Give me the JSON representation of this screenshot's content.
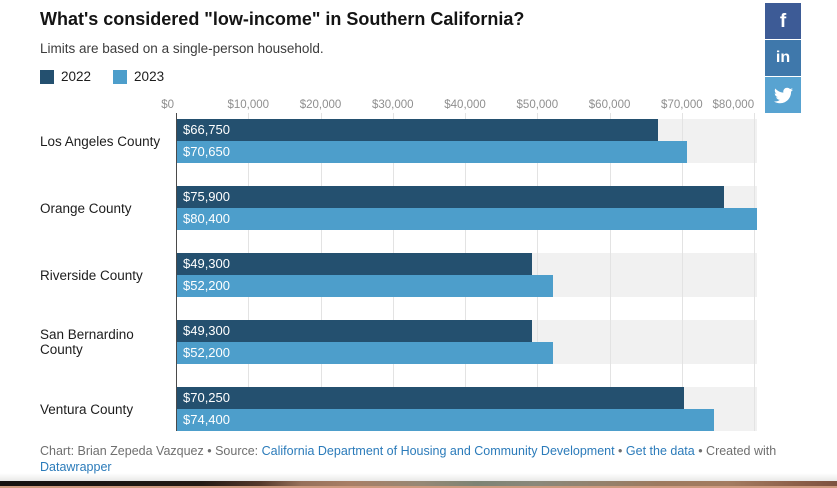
{
  "title": "What's considered \"low-income\" in Southern California?",
  "subtitle": "Limits are based on a single-person household.",
  "legend": {
    "items": [
      {
        "label": "2022",
        "color": "#24506f"
      },
      {
        "label": "2023",
        "color": "#4d9ecb"
      }
    ]
  },
  "chart_data": {
    "type": "bar",
    "orientation": "horizontal",
    "title": "What's considered \"low-income\" in Southern California?",
    "subtitle": "Limits are based on a single-person household.",
    "categories": [
      "Los Angeles County",
      "Orange County",
      "Riverside County",
      "San Bernardino County",
      "Ventura County"
    ],
    "series": [
      {
        "name": "2022",
        "color": "#24506f",
        "values": [
          66750,
          75900,
          49300,
          49300,
          70250
        ],
        "labels": [
          "$66,750",
          "$75,900",
          "$49,300",
          "$49,300",
          "$70,250"
        ]
      },
      {
        "name": "2023",
        "color": "#4d9ecb",
        "values": [
          70650,
          80400,
          52200,
          52200,
          74400
        ],
        "labels": [
          "$70,650",
          "$80,400",
          "$52,200",
          "$52,200",
          "$74,400"
        ]
      }
    ],
    "xlabel": "",
    "ylabel": "",
    "xmax": 80400,
    "grid": "vertical",
    "legend_position": "top",
    "axis_ticks": [
      {
        "label": "$0",
        "value": 0
      },
      {
        "label": "$10,000",
        "value": 10000
      },
      {
        "label": "$20,000",
        "value": 20000
      },
      {
        "label": "$30,000",
        "value": 30000
      },
      {
        "label": "$40,000",
        "value": 40000
      },
      {
        "label": "$50,000",
        "value": 50000
      },
      {
        "label": "$60,000",
        "value": 60000
      },
      {
        "label": "$70,000",
        "value": 70000
      },
      {
        "label": "$80,000",
        "value": 80000
      }
    ]
  },
  "footer": {
    "segments": [
      {
        "text": "Chart: Brian Zepeda Vazquez • Source: ",
        "link": false
      },
      {
        "text": "California Department of Housing and Community Development",
        "link": true
      },
      {
        "text": " • ",
        "link": false
      },
      {
        "text": "Get the data",
        "link": true
      },
      {
        "text": " • Created with ",
        "link": false
      },
      {
        "text": "Datawrapper",
        "link": true
      }
    ]
  },
  "share": {
    "buttons": [
      {
        "name": "facebook",
        "icon_name": "facebook-icon",
        "glyph": "f",
        "color": "#3d5b96"
      },
      {
        "name": "linkedin",
        "icon_name": "linkedin-icon",
        "glyph": "in",
        "color": "#3f78ab"
      },
      {
        "name": "twitter",
        "icon_name": "twitter-icon",
        "glyph": "bird",
        "color": "#58a3d1"
      }
    ]
  },
  "colors": {
    "bar_2022": "#24506f",
    "bar_2023": "#4d9ecb",
    "link": "#2b7bba",
    "band": "#f1f1f1",
    "gridline": "#e3e3e3",
    "axis_line": "#4a4a4a",
    "tick_text": "#8f8f8f",
    "footer_text": "#6f6f6f"
  }
}
